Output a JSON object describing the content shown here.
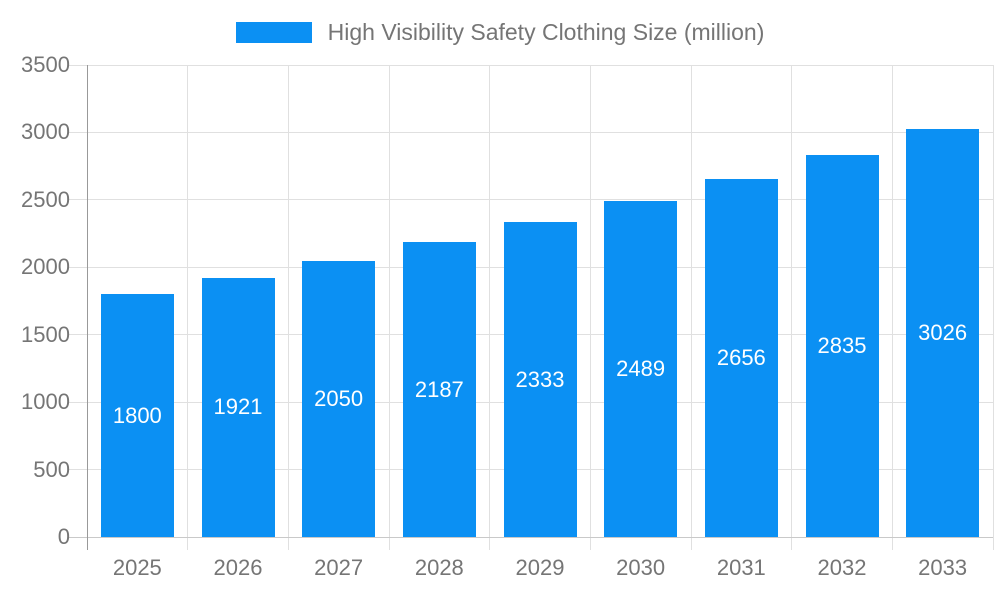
{
  "legend": {
    "label": "High Visibility Safety Clothing Size (million)"
  },
  "chart_data": {
    "type": "bar",
    "title": "High Visibility Safety Clothing Size (million)",
    "categories": [
      "2025",
      "2026",
      "2027",
      "2028",
      "2029",
      "2030",
      "2031",
      "2032",
      "2033"
    ],
    "values": [
      1800,
      1921,
      2050,
      2187,
      2333,
      2489,
      2656,
      2835,
      3026
    ],
    "series": [
      {
        "name": "High Visibility Safety Clothing Size (million)",
        "values": [
          1800,
          1921,
          2050,
          2187,
          2333,
          2489,
          2656,
          2835,
          3026
        ]
      }
    ],
    "xlabel": "",
    "ylabel": "",
    "ylim": [
      0,
      3500
    ],
    "yticks": [
      0,
      500,
      1000,
      1500,
      2000,
      2500,
      3000,
      3500
    ],
    "grid": true,
    "legend_position": "top-center",
    "bar_value_labels": "inside-center",
    "colors": {
      "bar": "#0b90f3",
      "bar_label_text": "#ffffff",
      "axis_text": "#757575",
      "grid": "#e0e0e0",
      "zero_line": "#c9c9c9",
      "axis_line": "#999999",
      "background": "#ffffff"
    }
  }
}
